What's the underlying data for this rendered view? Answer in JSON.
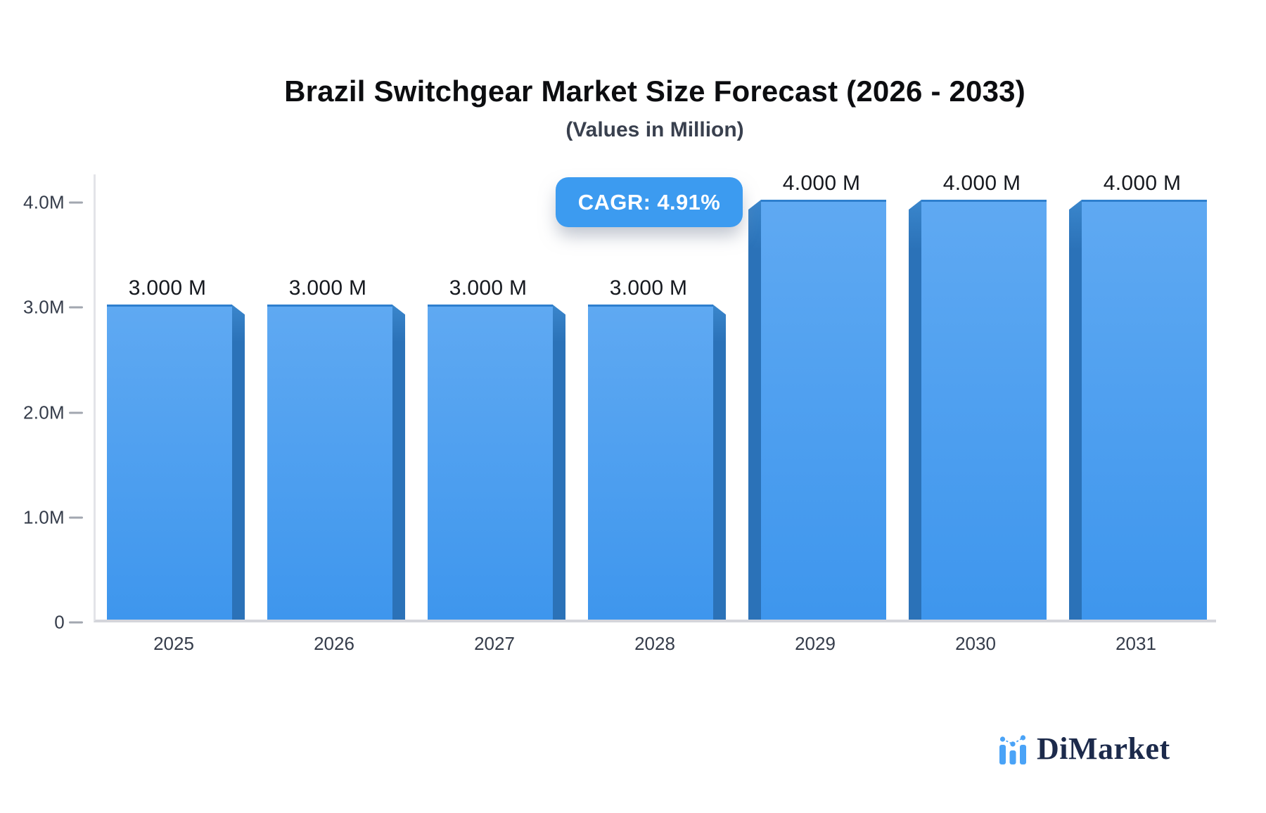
{
  "chart_data": {
    "type": "bar",
    "title": "Brazil Switchgear Market Size Forecast (2026 - 2033)",
    "subtitle": "(Values in Million)",
    "categories": [
      "2025",
      "2026",
      "2027",
      "2028",
      "2029",
      "2030",
      "2031"
    ],
    "values": [
      3.0,
      3.0,
      3.0,
      3.0,
      4.0,
      4.0,
      4.0
    ],
    "value_labels": [
      "3.000 M",
      "3.000 M",
      "3.000 M",
      "3.000 M",
      "4.000 M",
      "4.000 M",
      "4.000 M"
    ],
    "units": "Million",
    "xlabel": "",
    "ylabel": "",
    "ylim": [
      0,
      4
    ],
    "y_ticks": [
      {
        "label": "4.0M",
        "value": 4
      },
      {
        "label": "3.0M",
        "value": 3
      },
      {
        "label": "2.0M",
        "value": 2
      },
      {
        "label": "1.0M",
        "value": 1
      },
      {
        "label": "0",
        "value": 0
      }
    ],
    "grid": "off",
    "legend": "none",
    "bar_3d_side": [
      "right",
      "right",
      "right",
      "right",
      "left",
      "left",
      "left"
    ],
    "annotation": {
      "cagr_label": "CAGR: 4.91%"
    }
  },
  "branding": {
    "name": "DiMarket"
  },
  "colors": {
    "title": "#0C0D10",
    "subtitle": "#39404E",
    "value_label": "#16191F",
    "axis_label": "#353C4A",
    "axis_line": "#E3E4E8",
    "baseline": "#D4D5DB",
    "tick": "#A2A7B0",
    "bar_face_top": "#5FA9F2",
    "bar_face_bottom": "#3E96ED",
    "bar_top_edge": "#2E7FCE",
    "bar_side": "#2B72B8",
    "badge_bg": "#3C9BF0",
    "badge_text": "#FFFFFF",
    "logo_text": "#1C2A4B",
    "logo_icon": "#4AA3F7"
  }
}
